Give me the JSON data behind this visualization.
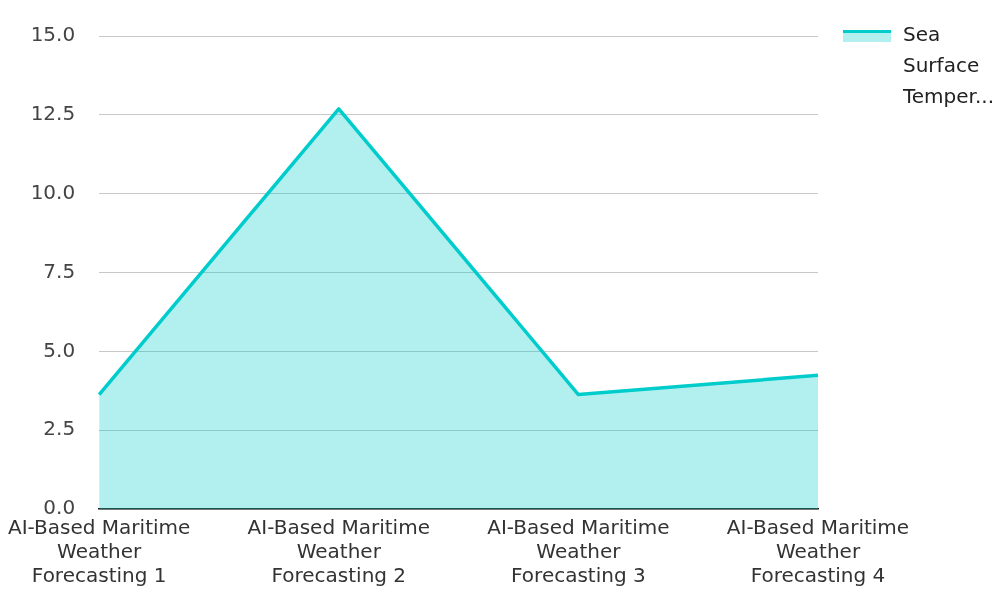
{
  "chart_data": {
    "type": "area",
    "categories": [
      "AI-Based Maritime Weather Forecasting 1",
      "AI-Based Maritime Weather Forecasting 2",
      "AI-Based Maritime Weather Forecasting 3",
      "AI-Based Maritime Weather Forecasting 4"
    ],
    "series": [
      {
        "name": "Sea Surface Temper...",
        "color": "#00cccc",
        "values": [
          3.63,
          12.69,
          3.63,
          4.24
        ]
      }
    ],
    "ylim": [
      0,
      15
    ],
    "yticks": [
      {
        "value": 0,
        "label": "0.0"
      },
      {
        "value": 2.5,
        "label": "2.5"
      },
      {
        "value": 5,
        "label": "5.0"
      },
      {
        "value": 7.5,
        "label": "7.5"
      },
      {
        "value": 10,
        "label": "10.0"
      },
      {
        "value": 12.5,
        "label": "12.5"
      },
      {
        "value": 15,
        "label": "15.0"
      }
    ],
    "grid": "y",
    "legend": "top right"
  }
}
